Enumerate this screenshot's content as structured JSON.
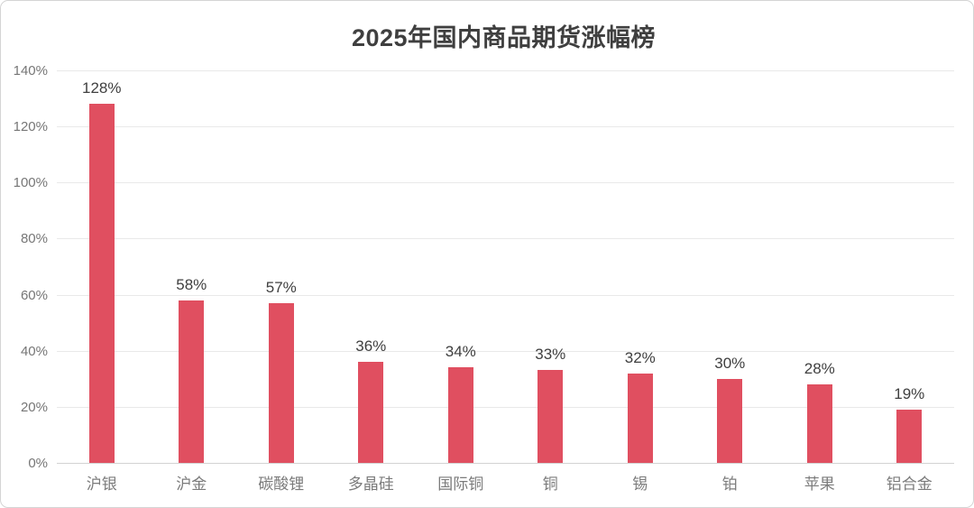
{
  "chart_data": {
    "type": "bar",
    "title": "2025年国内商品期货涨幅榜",
    "categories": [
      "沪银",
      "沪金",
      "碳酸锂",
      "多晶硅",
      "国际铜",
      "铜",
      "锡",
      "铂",
      "苹果",
      "铝合金"
    ],
    "values": [
      128,
      58,
      57,
      36,
      34,
      33,
      32,
      30,
      28,
      19
    ],
    "data_labels": [
      "128%",
      "58%",
      "57%",
      "36%",
      "34%",
      "33%",
      "32%",
      "30%",
      "28%",
      "19%"
    ],
    "xlabel": "",
    "ylabel": "",
    "ylim": [
      0,
      140
    ],
    "yticks": [
      0,
      20,
      40,
      60,
      80,
      100,
      120,
      140
    ],
    "ytick_labels": [
      "0%",
      "20%",
      "40%",
      "60%",
      "80%",
      "100%",
      "120%",
      "140%"
    ],
    "grid": true,
    "legend_position": "none",
    "colors": {
      "bar": "#e04f60",
      "title_text": "#3f3f3f",
      "data_label_text": "#3f3f3f",
      "axis_label_text": "#7b7b7b",
      "gridline": "#e9e9e9",
      "baseline": "#d3d3d3",
      "frame_border": "#d4d4d4",
      "background": "#ffffff"
    }
  }
}
